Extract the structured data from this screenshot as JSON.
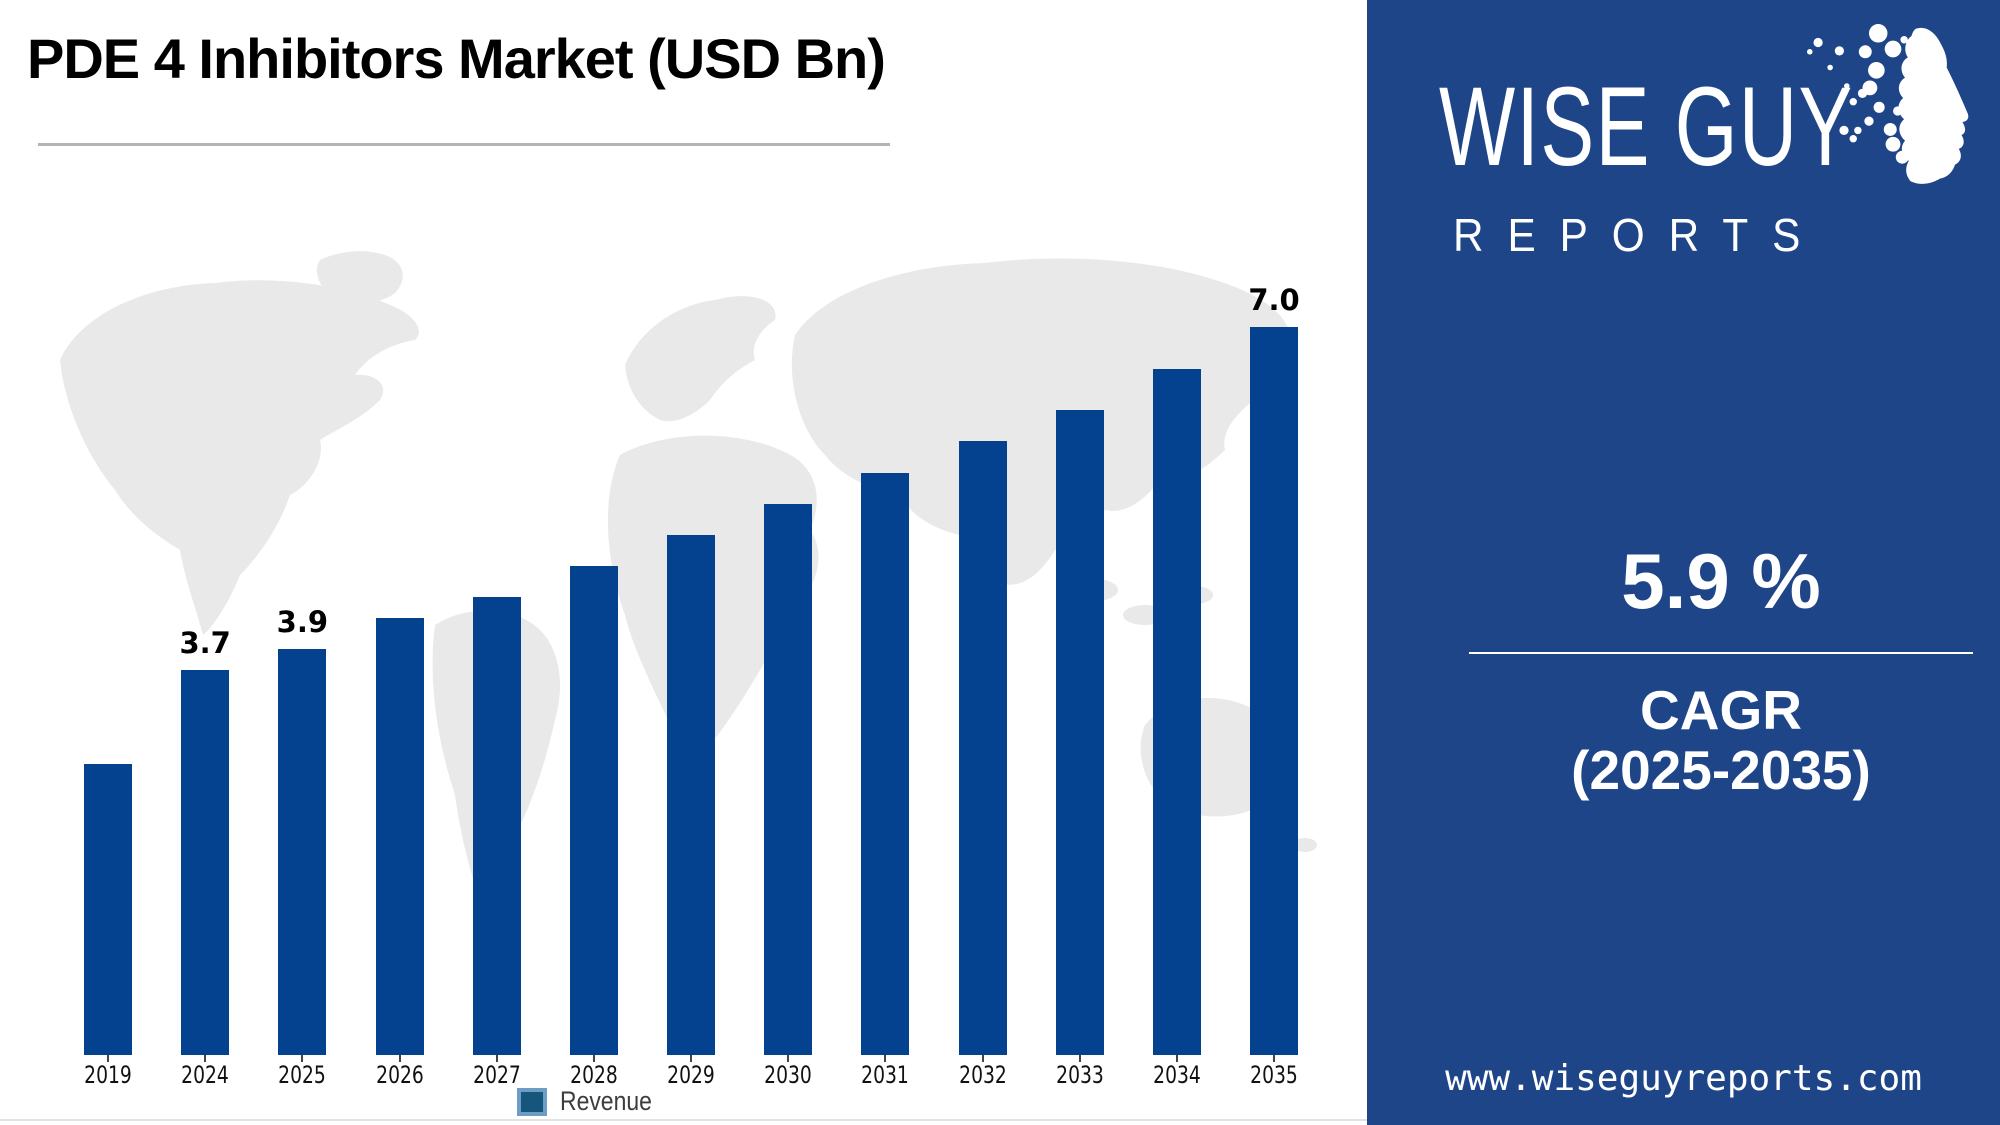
{
  "header": {
    "title": "PDE 4 Inhibitors Market (USD Bn)"
  },
  "chart_data": {
    "type": "bar",
    "title": "PDE 4 Inhibitors Market (USD Bn)",
    "categories": [
      "2019",
      "2024",
      "2025",
      "2026",
      "2027",
      "2028",
      "2029",
      "2030",
      "2031",
      "2032",
      "2033",
      "2034",
      "2035"
    ],
    "values": [
      2.8,
      3.7,
      3.9,
      4.2,
      4.4,
      4.7,
      5.0,
      5.3,
      5.6,
      5.9,
      6.2,
      6.6,
      7.0
    ],
    "data_labels": {
      "2024": "3.7",
      "2025": "3.9",
      "2035": "7.0"
    },
    "series_name": "Revenue",
    "xlabel": "",
    "ylabel": "",
    "ylim": [
      0,
      7.5
    ],
    "grid": false,
    "legend_position": "bottom-center",
    "bar_color": "#04418f",
    "map_watermark_color": "#e9e9e9"
  },
  "legend": {
    "revenue_label": "Revenue",
    "swatch_color": "#16567c"
  },
  "sidebar": {
    "panel_color": "#1f4589",
    "logo_line1": "WISE GUY",
    "logo_line2": "REPORTS",
    "cagr_value": "5.9 %",
    "cagr_title": "CAGR",
    "cagr_period": "(2025-2035)",
    "website": "www.wiseguyreports.com"
  }
}
